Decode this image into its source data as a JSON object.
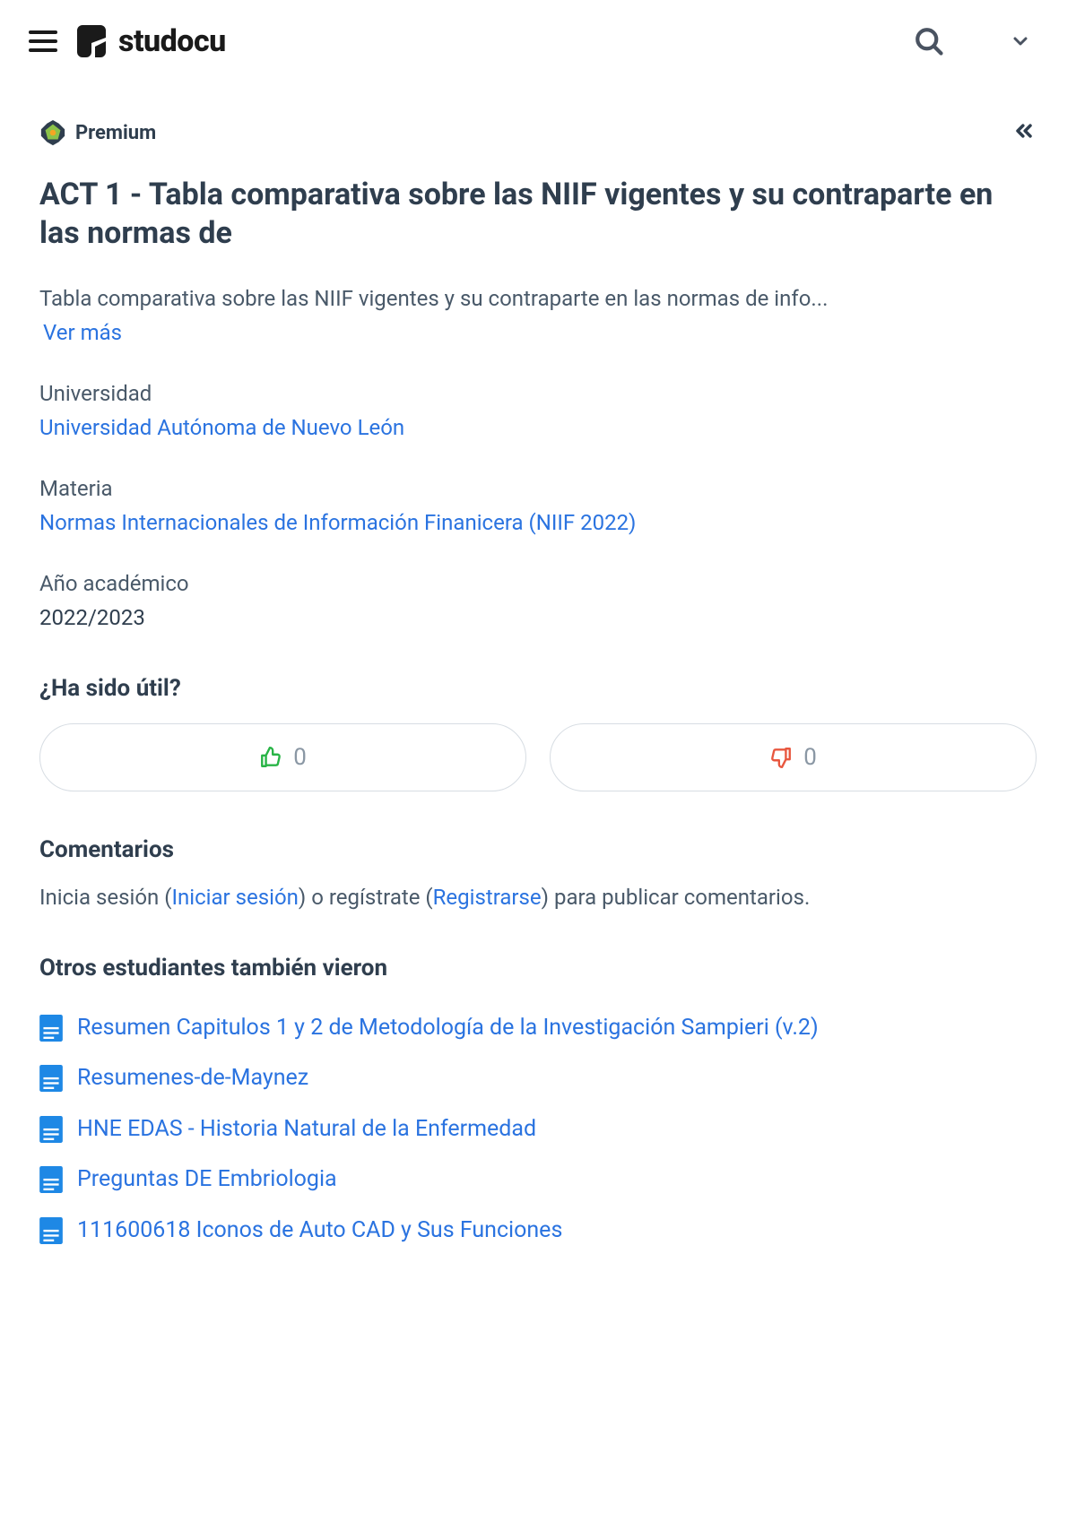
{
  "header": {
    "logo_text": "studocu"
  },
  "premium": {
    "label": "Premium"
  },
  "document": {
    "title": "ACT 1 - Tabla comparativa sobre las NIIF vigentes y su contraparte en las normas de",
    "description": "Tabla comparativa sobre las NIIF vigentes y su contraparte en las normas de info...",
    "see_more": "Ver más",
    "university_label": "Universidad",
    "university": "Universidad Autónoma de Nuevo León",
    "subject_label": "Materia",
    "subject": "Normas Internacionales de Información Finanicera (NIIF 2022)",
    "year_label": "Año académico",
    "year": "2022/2023"
  },
  "helpful": {
    "heading": "¿Ha sido útil?",
    "up_count": "0",
    "down_count": "0"
  },
  "comments": {
    "heading": "Comentarios",
    "prefix": "Inicia sesión (",
    "login": "Iniciar sesión",
    "middle": ") o regístrate (",
    "register": "Registrarse",
    "suffix": ") para publicar comentarios."
  },
  "related": {
    "heading": "Otros estudiantes también vieron",
    "items": [
      "Resumen Capitulos 1 y 2 de Metodología de la Investigación Sampieri (v.2)",
      "Resumenes-de-Maynez",
      "HNE EDAS - Historia Natural de la Enfermedad",
      "Preguntas DE Embriologia",
      "111600618 Iconos de Auto CAD y Sus Funciones"
    ]
  },
  "colors": {
    "link": "#2a73e0",
    "text_primary": "#2f3e4e",
    "text_secondary": "#495969",
    "border": "#d7dde3",
    "thumb_up": "#28b446",
    "thumb_down": "#e8573f",
    "doc_icon": "#1e88e5"
  }
}
